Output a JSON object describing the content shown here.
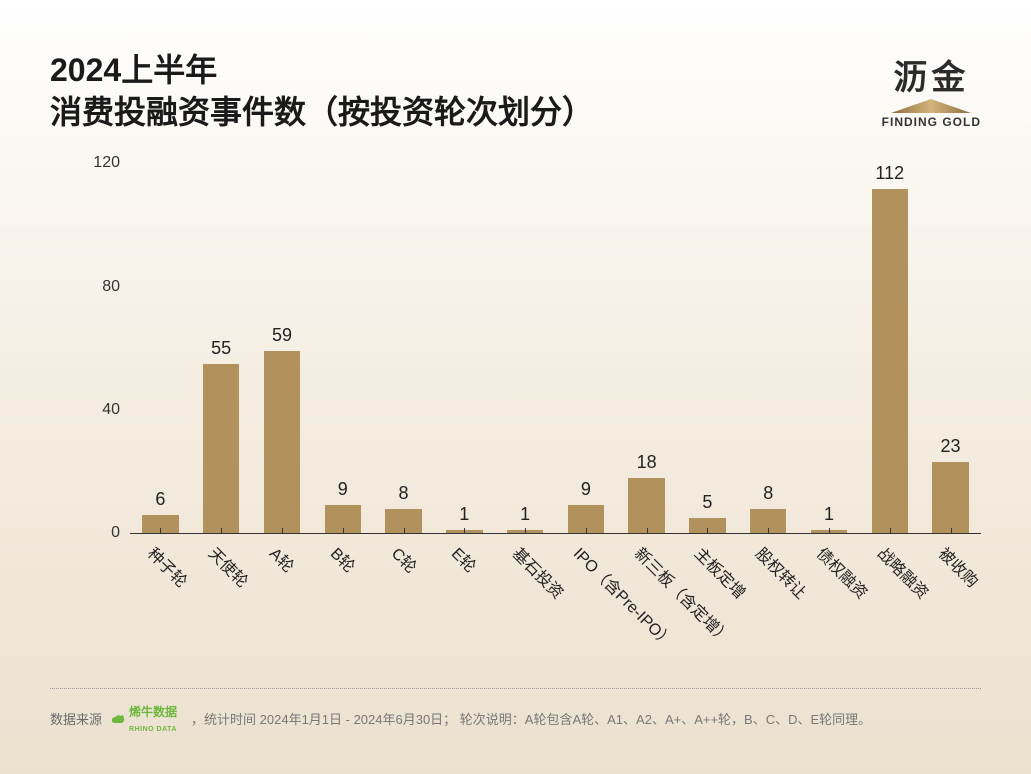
{
  "header": {
    "title_line1": "2024上半年",
    "title_line2": "消费投融资事件数（按投资轮次划分）",
    "logo_text": "沥金",
    "logo_subtitle": "FINDING GOLD"
  },
  "chart": {
    "type": "bar",
    "ylim": [
      0,
      120
    ],
    "yticks": [
      0,
      40,
      80,
      120
    ],
    "bar_color": "#b2925c",
    "background_gradient": [
      "#ffffff",
      "#f4ede1",
      "#ece1cf"
    ],
    "axis_text_color": "#333333",
    "value_label_color": "#222222",
    "value_label_fontsize": 18,
    "axis_label_fontsize": 16,
    "x_label_rotation_deg": 45,
    "categories": [
      "种子轮",
      "天使轮",
      "A轮",
      "B轮",
      "C轮",
      "E轮",
      "基石投资",
      "IPO（含Pre-IPO）",
      "新三板（含定增）",
      "主板定增",
      "股权转让",
      "债权融资",
      "战略融资",
      "被收购"
    ],
    "values": [
      6,
      55,
      59,
      9,
      8,
      1,
      1,
      9,
      18,
      5,
      8,
      1,
      112,
      23
    ]
  },
  "footer": {
    "source_label": "数据来源",
    "source_logo_text": "烯牛数据",
    "source_logo_sub": "RHINO DATA",
    "note": "，统计时间 2024年1月1日 - 2024年6月30日； 轮次说明：A轮包含A轮、A1、A2、A+、A++轮，B、C、D、E轮同理。"
  }
}
